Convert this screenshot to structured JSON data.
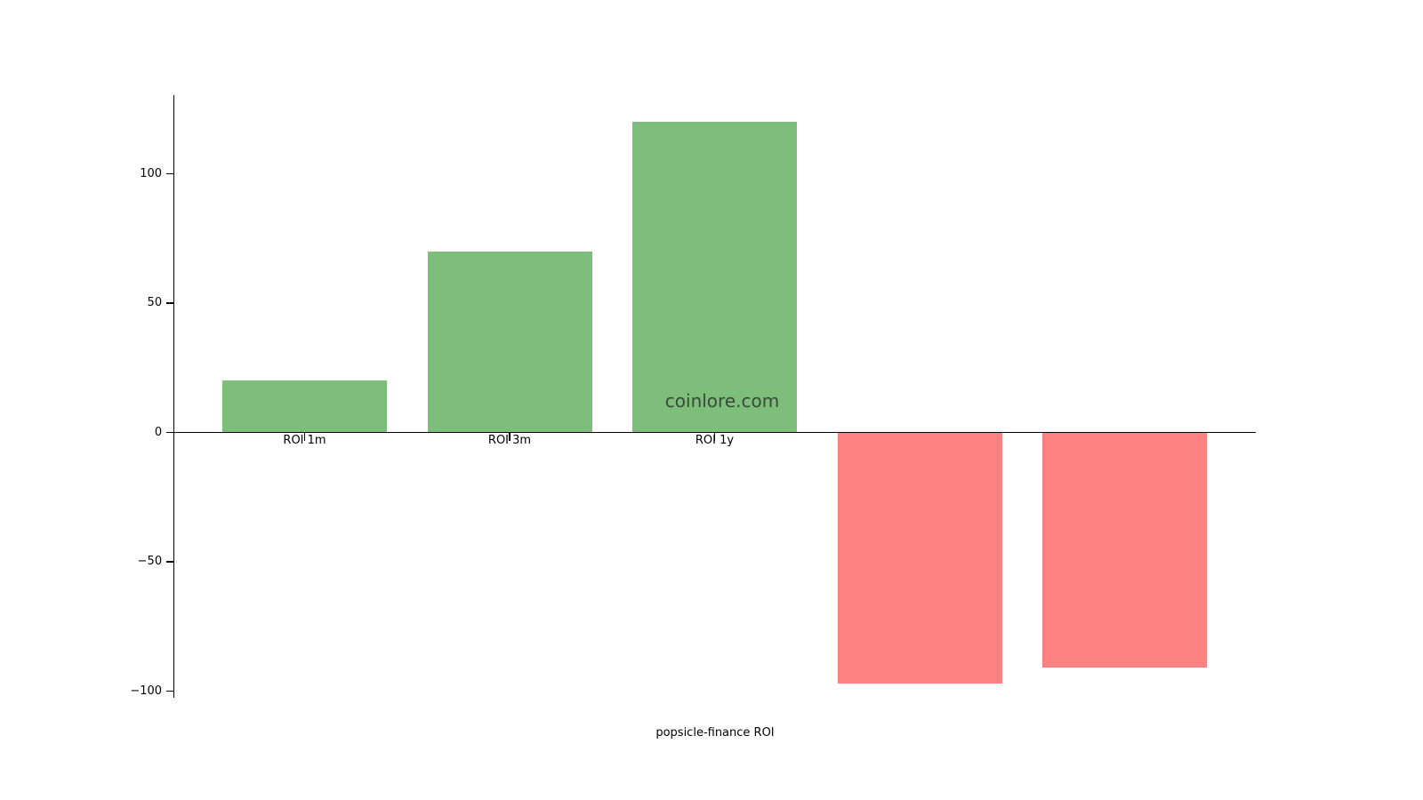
{
  "page": {
    "background": "#ffffff"
  },
  "watermark": {
    "text": "coinlore.com",
    "color_hint": "rgba(40,40,40,0.78)"
  },
  "chart_data": {
    "type": "bar",
    "title": "popsicle-finance ROI",
    "categories": [
      "ROI 1m",
      "ROI 3m",
      "ROI 1y",
      "",
      ""
    ],
    "values": [
      20,
      70,
      120,
      -97,
      -91
    ],
    "positive_color": "#7dbe7b",
    "negative_color": "#fc8181",
    "axis_color": "#000000",
    "y_ticks": [
      100,
      50,
      0,
      -50,
      -100
    ],
    "y_tick_labels": [
      "100",
      "50",
      "0",
      "−50",
      "−100"
    ],
    "ylim": [
      -103,
      130
    ],
    "xlabel": "",
    "ylabel": "",
    "grid": false,
    "legend": null
  }
}
